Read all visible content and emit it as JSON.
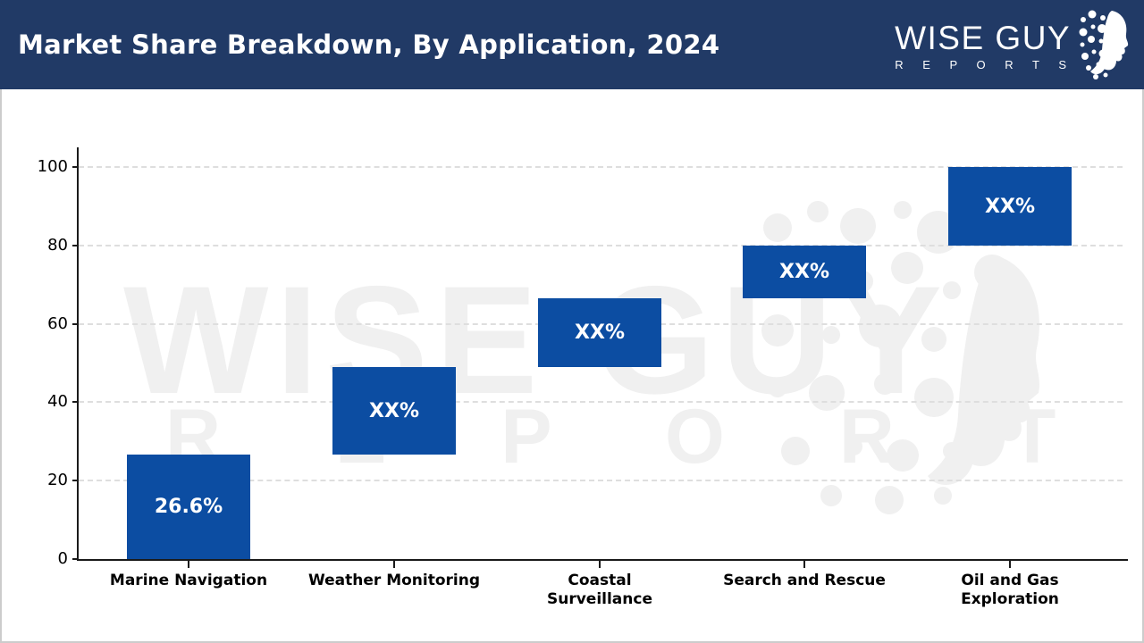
{
  "header": {
    "title": "Market Share Breakdown, By Application, 2024",
    "background_color": "#213A66",
    "logo": {
      "line1": "WISE GUY",
      "line2": "R E P O R T S"
    }
  },
  "watermark": {
    "line1": "WISE GUY",
    "line2": "R E P O R T S"
  },
  "chart_data": {
    "type": "bar",
    "variant": "waterfall",
    "title": "Market Share Breakdown, By Application, 2024",
    "categories": [
      "Marine Navigation",
      "Weather Monitoring",
      "Coastal Surveillance",
      "Search and Rescue",
      "Oil and Gas Exploration"
    ],
    "category_lines": [
      [
        "Marine Navigation"
      ],
      [
        "Weather Monitoring"
      ],
      [
        "Coastal",
        "Surveillance"
      ],
      [
        "Search and Rescue"
      ],
      [
        "Oil and Gas",
        "Exploration"
      ]
    ],
    "segments": [
      {
        "category": "Marine Navigation",
        "start": 0,
        "end": 26.6,
        "label": "26.6%"
      },
      {
        "category": "Weather Monitoring",
        "start": 26.6,
        "end": 48.9,
        "label": "XX%"
      },
      {
        "category": "Coastal Surveillance",
        "start": 48.9,
        "end": 66.6,
        "label": "XX%"
      },
      {
        "category": "Search and Rescue",
        "start": 66.6,
        "end": 79.9,
        "label": "XX%"
      },
      {
        "category": "Oil and Gas Exploration",
        "start": 79.9,
        "end": 100,
        "label": "XX%"
      }
    ],
    "values": [
      26.6,
      22.3,
      17.7,
      13.3,
      20.1
    ],
    "y_ticks": [
      0,
      20,
      40,
      60,
      80,
      100
    ],
    "ylim": [
      0,
      105
    ],
    "xlabel": "",
    "ylabel": "",
    "grid": "horizontal-dashed",
    "legend": "none",
    "bar_color": "#0C4DA2",
    "bar_label_color": "#FFFFFF",
    "axis_color": "#1a1a1a",
    "gridline_color": "#dedede"
  }
}
